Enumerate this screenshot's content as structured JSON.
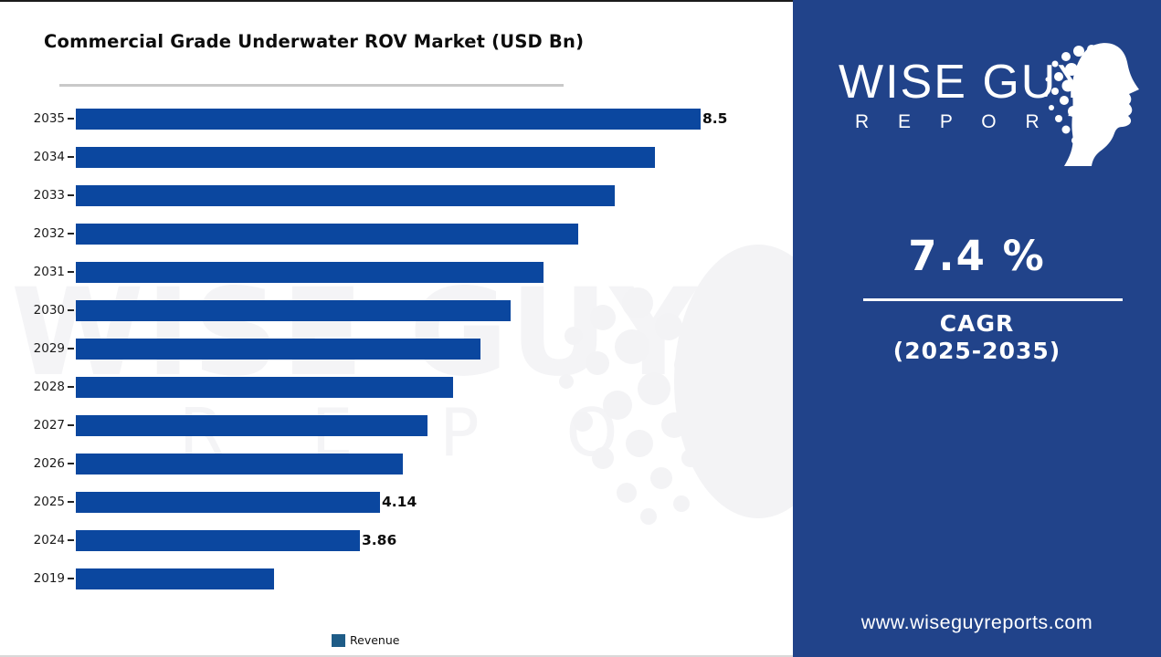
{
  "chart_data": {
    "type": "bar",
    "orientation": "horizontal",
    "title": "Commercial Grade Underwater ROV Market (USD Bn)",
    "categories": [
      "2035",
      "2034",
      "2033",
      "2032",
      "2031",
      "2030",
      "2029",
      "2028",
      "2027",
      "2026",
      "2025",
      "2024",
      "2019"
    ],
    "values": [
      8.5,
      7.88,
      7.33,
      6.83,
      6.36,
      5.92,
      5.51,
      5.13,
      4.78,
      4.45,
      4.14,
      3.86,
      2.7
    ],
    "value_labels": [
      "8.5",
      "",
      "",
      "",
      "",
      "",
      "",
      "",
      "",
      "",
      "4.14",
      "3.86",
      ""
    ],
    "xlabel": "",
    "ylabel": "",
    "xlim": [
      0,
      9.6
    ],
    "grid": false,
    "bar_color": "#0b479f",
    "legend": {
      "label": "Revenue",
      "swatch_color": "#1e5c87",
      "position": "bottom-center"
    }
  },
  "watermark": {
    "line1": "WISE GUY",
    "line2": "R E P O R T S"
  },
  "sidebar": {
    "background_color": "#21438a",
    "logo": {
      "line1": "WISE GUY",
      "line2": "R E P O R T S",
      "icon": "face-profile-dots-icon"
    },
    "cagr_value": "7.4 %",
    "cagr_label_line1": "CAGR",
    "cagr_label_line2": "(2025-2035)",
    "website": "www.wiseguyreports.com"
  }
}
